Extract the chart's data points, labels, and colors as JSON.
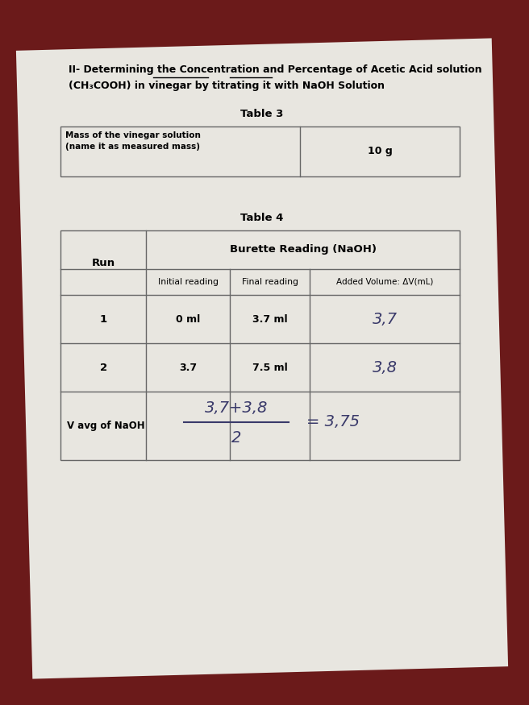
{
  "bg_color": "#6b1a1a",
  "paper_color": "#e8e6e0",
  "title_line1": "II- Determining the Concentration and Percentage of Acetic Acid solution",
  "title_line2": "(CH₃COOH) in vinegar by titrating it with NaOH Solution",
  "table3_title": "Table 3",
  "table3_row_label": "Mass of the vinegar solution\n(name it as measured mass)",
  "table3_value": "10 g",
  "table4_title": "Table 4",
  "table4_col1": "Run",
  "table4_burette_header": "Burette Reading (NaOH)",
  "table4_sub1": "Initial reading",
  "table4_sub2": "Final reading",
  "table4_sub3": "Added Volume: ΔV(mL)",
  "run1": "1",
  "run1_init": "0 ml",
  "run1_final": "3.7 ml",
  "run1_added": "3,7",
  "run2": "2",
  "run2_init": "3.7",
  "run2_final": "7.5 ml",
  "run2_added": "3,8",
  "vavg_label": "V avg of NaOH",
  "vavg_formula_num": "3,7+3,8",
  "vavg_formula_den": "2",
  "vavg_result": "= 3,75",
  "handwrite_color": "#3a3a6a",
  "table_edge_color": "#666666",
  "title_fs": 9.0,
  "table_fs": 8.5
}
